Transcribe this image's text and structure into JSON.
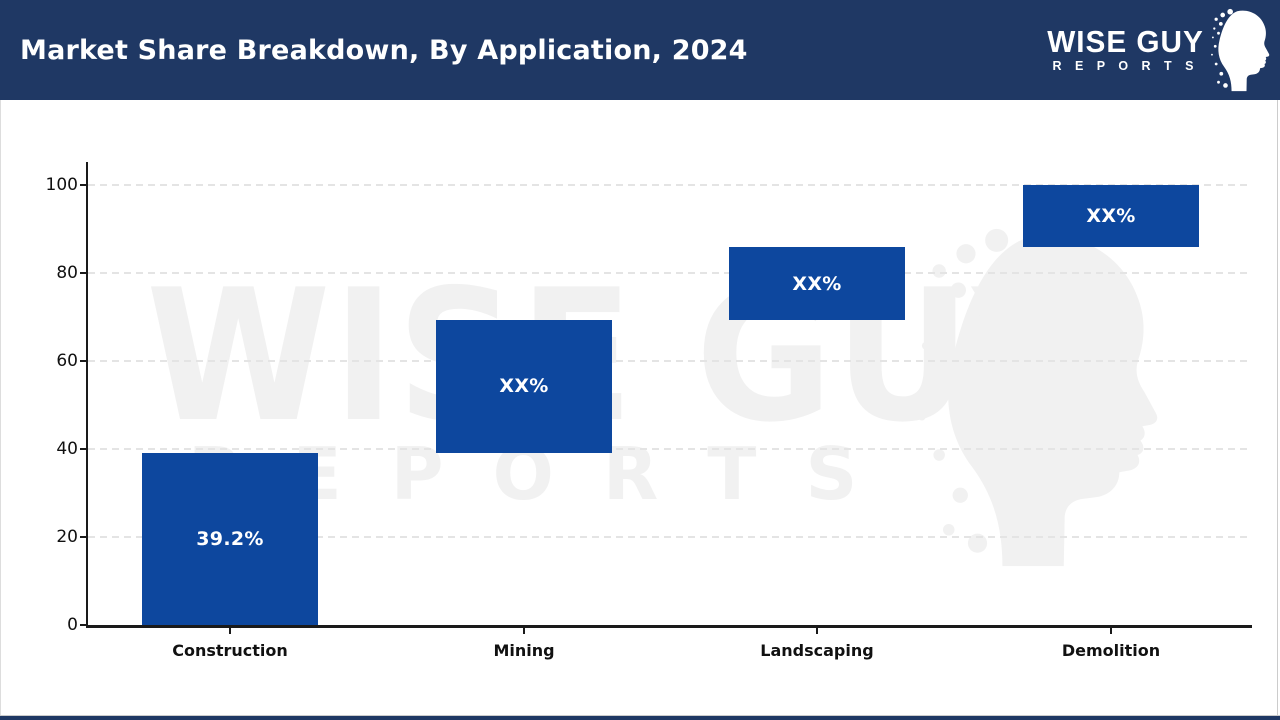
{
  "header": {
    "title": "Market Share Breakdown, By Application, 2024",
    "logo": {
      "line1": "WISE GUY",
      "line2": "R E P O R T S"
    }
  },
  "watermark": {
    "line1": "WISE GUY",
    "line2": "R E P O R T S"
  },
  "chart_data": {
    "type": "bar",
    "subtype": "floating-waterfall",
    "title": "Market Share Breakdown, By Application, 2024",
    "categories": [
      "Construction",
      "Mining",
      "Landscaping",
      "Demolition"
    ],
    "series": [
      {
        "name": "Market share (%)",
        "segments": [
          {
            "start": 0,
            "end": 39.2
          },
          {
            "start": 39.2,
            "end": 69.3
          },
          {
            "start": 69.3,
            "end": 85.9
          },
          {
            "start": 85.9,
            "end": 100
          }
        ]
      }
    ],
    "bar_labels": [
      "39.2%",
      "XX%",
      "XX%",
      "XX%"
    ],
    "xlabel": "",
    "ylabel": "",
    "yticks": [
      0,
      20,
      40,
      60,
      80,
      100
    ],
    "ylim": [
      0,
      105
    ],
    "grid": "dashed-horizontal",
    "legend": "none"
  },
  "colors": {
    "header_bg": "#1f3864",
    "footer_bg": "#1f3864",
    "bar": "#0d479e",
    "grid": "#e4e4e4",
    "axis": "#1a1a1a",
    "watermark": "#f1f1f1",
    "hairline": "#cccccc",
    "title_text": "#ffffff",
    "bar_label_text": "#ffffff"
  }
}
